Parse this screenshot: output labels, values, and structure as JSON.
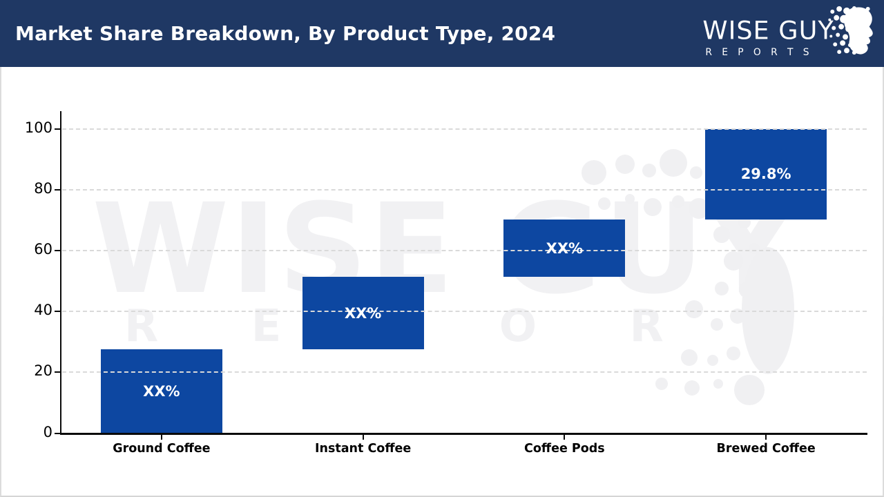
{
  "header": {
    "title": "Market Share Breakdown, By Product Type, 2024",
    "logo": {
      "name": "WISE GUY",
      "sub": "R E P O R T S"
    }
  },
  "watermark": {
    "line1": "WISE GUY",
    "line2": "R E P O R T S"
  },
  "colors": {
    "header_bg": "#1f3864",
    "bar": "#0d47a1",
    "grid": "#d9d9d9",
    "watermark": "#f1f1f3",
    "axis": "#0a0a0a",
    "bar_label": "#ffffff",
    "frame": "#dcdcdc"
  },
  "chart_data": {
    "type": "bar",
    "subtype": "waterfall",
    "title": "Market Share Breakdown, By Product Type, 2024",
    "categories": [
      "Ground Coffee",
      "Instant Coffee",
      "Coffee Pods",
      "Brewed Coffee"
    ],
    "segments": [
      {
        "category": "Ground Coffee",
        "start": 0,
        "end": 27.5,
        "value_label": "XX%"
      },
      {
        "category": "Instant Coffee",
        "start": 27.5,
        "end": 51.3,
        "value_label": "XX%"
      },
      {
        "category": "Coffee Pods",
        "start": 51.3,
        "end": 70.2,
        "value_label": "XX%"
      },
      {
        "category": "Brewed Coffee",
        "start": 70.2,
        "end": 100,
        "value_label": "29.8%"
      }
    ],
    "yticks": [
      0,
      20,
      40,
      60,
      80,
      100
    ],
    "ylim": [
      0,
      100
    ],
    "xlabel": "",
    "ylabel": "",
    "grid": "dashed horizontal, drawn over bars",
    "legend": "none"
  }
}
